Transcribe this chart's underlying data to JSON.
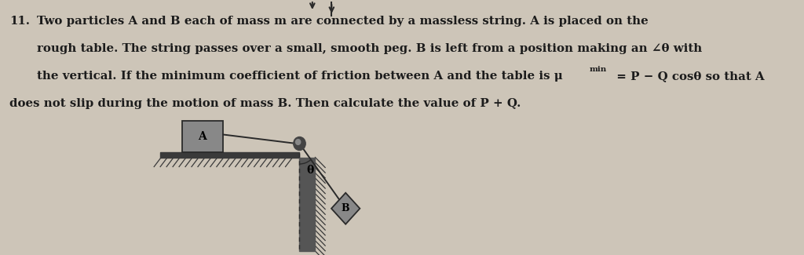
{
  "background_color": "#cdc5b8",
  "fig_width": 10.24,
  "fig_height": 3.25,
  "dpi": 100,
  "question_number": "11.",
  "text_line1": "Two particles A and B each of mass m are connected by a massless string. A is placed on the",
  "text_line2": "rough table. The string passes over a small, smooth peg. B is left from a position making an ∠θ with",
  "text_line3a": "the vertical. If the minimum coefficient of friction between A and the table is μ",
  "text_line3_sub": "min",
  "text_line3b": " = P − Q cosθ so that A",
  "text_line4": "does not slip during the motion of mass B. Then calculate the value of P + Q.",
  "text_color": "#1c1c1c",
  "table_color": "#3a3a3a",
  "block_color": "#888888",
  "string_color": "#2a2a2a",
  "hatch_color": "#3a3a3a",
  "wall_color": "#555555",
  "peg_color": "#444444"
}
